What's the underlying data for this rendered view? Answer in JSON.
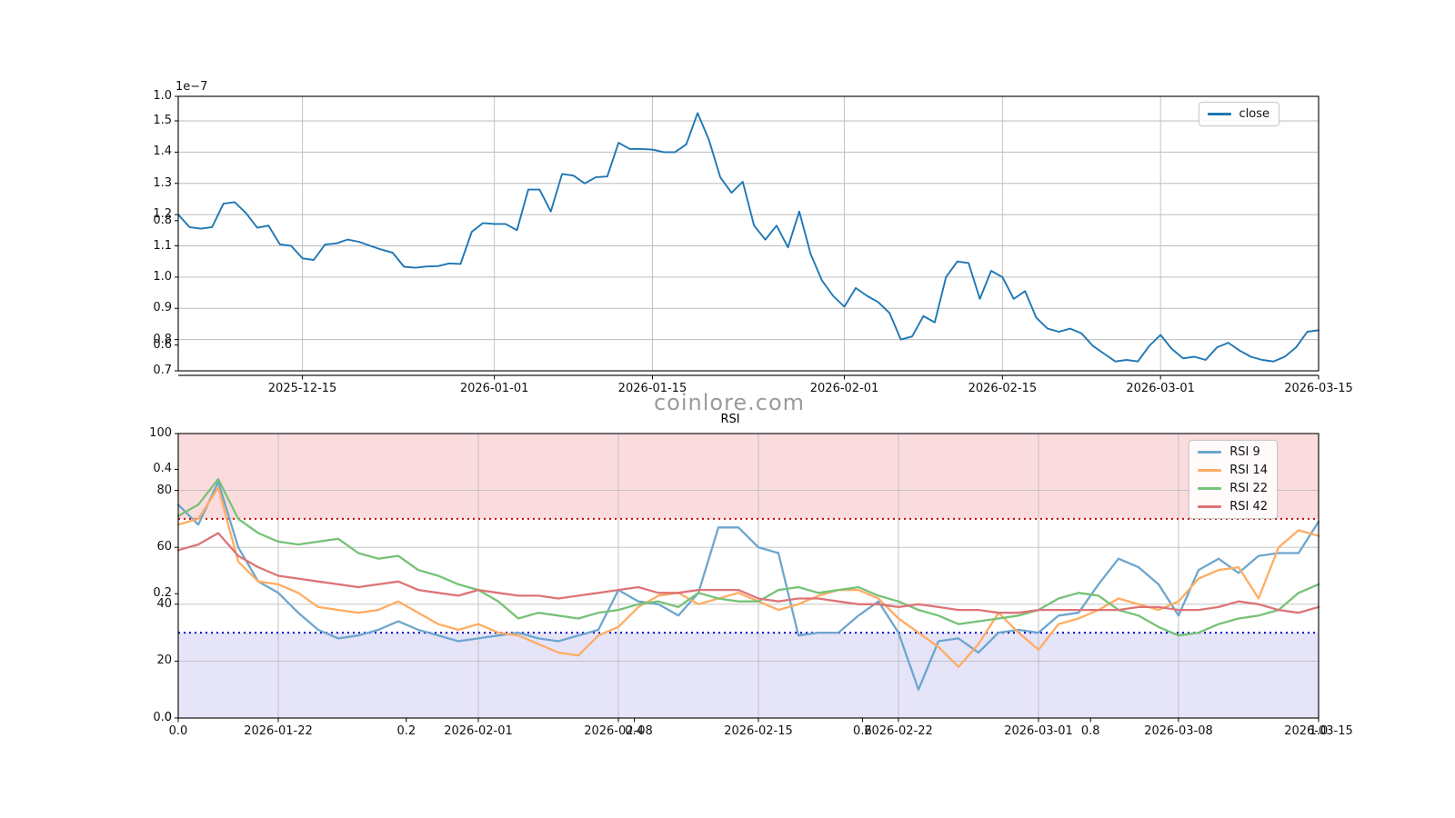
{
  "watermark": "coinlore.com",
  "overlay_axis": {
    "y_ticks": [
      "1.0",
      "0.8",
      "0.6",
      "0.4",
      "0.2",
      "0.0"
    ],
    "x_ticks": [
      "0.0",
      "0.2",
      "0.4",
      "0.6",
      "0.8",
      "1.0"
    ]
  },
  "chart_data": [
    {
      "type": "line",
      "name": "price",
      "title": "",
      "offset_label": "1e−7",
      "ylabel": "",
      "xlabel": "",
      "grid": true,
      "legend_position": "upper right",
      "ylim": [
        0.678,
        1.578
      ],
      "y_ticks": [
        "1.5",
        "1.4",
        "1.3",
        "1.2",
        "1.1",
        "1.0",
        "0.9",
        "0.8",
        "0.7"
      ],
      "x_ticks": [
        "2025-12-15",
        "2026-01-01",
        "2026-01-15",
        "2026-02-01",
        "2026-02-15",
        "2026-03-01",
        "2026-03-15"
      ],
      "x": [
        "2025-12-04",
        "2025-12-05",
        "2025-12-06",
        "2025-12-07",
        "2025-12-08",
        "2025-12-09",
        "2025-12-10",
        "2025-12-11",
        "2025-12-12",
        "2025-12-13",
        "2025-12-14",
        "2025-12-15",
        "2025-12-16",
        "2025-12-17",
        "2025-12-18",
        "2025-12-19",
        "2025-12-20",
        "2025-12-21",
        "2025-12-22",
        "2025-12-23",
        "2025-12-24",
        "2025-12-25",
        "2025-12-26",
        "2025-12-27",
        "2025-12-28",
        "2025-12-29",
        "2025-12-30",
        "2025-12-31",
        "2026-01-01",
        "2026-01-02",
        "2026-01-03",
        "2026-01-04",
        "2026-01-05",
        "2026-01-06",
        "2026-01-07",
        "2026-01-08",
        "2026-01-09",
        "2026-01-10",
        "2026-01-11",
        "2026-01-12",
        "2026-01-13",
        "2026-01-14",
        "2026-01-15",
        "2026-01-16",
        "2026-01-17",
        "2026-01-18",
        "2026-01-19",
        "2026-01-20",
        "2026-01-21",
        "2026-01-22",
        "2026-01-23",
        "2026-01-24",
        "2026-01-25",
        "2026-01-26",
        "2026-01-27",
        "2026-01-28",
        "2026-01-29",
        "2026-01-30",
        "2026-01-31",
        "2026-02-01",
        "2026-02-02",
        "2026-02-03",
        "2026-02-04",
        "2026-02-05",
        "2026-02-06",
        "2026-02-07",
        "2026-02-08",
        "2026-02-09",
        "2026-02-10",
        "2026-02-11",
        "2026-02-12",
        "2026-02-13",
        "2026-02-14",
        "2026-02-15",
        "2026-02-16",
        "2026-02-17",
        "2026-02-18",
        "2026-02-19",
        "2026-02-20",
        "2026-02-21",
        "2026-02-22",
        "2026-02-23",
        "2026-02-24",
        "2026-02-25",
        "2026-02-26",
        "2026-02-27",
        "2026-02-28",
        "2026-03-01",
        "2026-03-02",
        "2026-03-03",
        "2026-03-04",
        "2026-03-05",
        "2026-03-06",
        "2026-03-07",
        "2026-03-08",
        "2026-03-09",
        "2026-03-10",
        "2026-03-11",
        "2026-03-12",
        "2026-03-13",
        "2026-03-14",
        "2026-03-15"
      ],
      "series": [
        {
          "name": "close",
          "color": "#1f77b4",
          "unit": "1e-7",
          "values": [
            1.2,
            1.16,
            1.155,
            1.16,
            1.235,
            1.24,
            1.205,
            1.158,
            1.165,
            1.105,
            1.1,
            1.06,
            1.055,
            1.104,
            1.108,
            1.12,
            1.113,
            1.1,
            1.088,
            1.078,
            1.033,
            1.03,
            1.034,
            1.035,
            1.044,
            1.042,
            1.145,
            1.173,
            1.17,
            1.17,
            1.15,
            1.28,
            1.28,
            1.21,
            1.33,
            1.325,
            1.3,
            1.32,
            1.322,
            1.43,
            1.41,
            1.41,
            1.408,
            1.4,
            1.4,
            1.425,
            1.525,
            1.44,
            1.32,
            1.27,
            1.305,
            1.165,
            1.12,
            1.165,
            1.095,
            1.21,
            1.075,
            0.99,
            0.94,
            0.905,
            0.965,
            0.94,
            0.92,
            0.885,
            0.8,
            0.81,
            0.875,
            0.855,
            1.0,
            1.05,
            1.045,
            0.93,
            1.02,
            1.0,
            0.93,
            0.955,
            0.87,
            0.835,
            0.825,
            0.835,
            0.82,
            0.78,
            0.755,
            0.73,
            0.735,
            0.73,
            0.78,
            0.815,
            0.77,
            0.74,
            0.745,
            0.735,
            0.775,
            0.79,
            0.765,
            0.745,
            0.735,
            0.73,
            0.745,
            0.775,
            0.825,
            0.83
          ]
        }
      ]
    },
    {
      "type": "line",
      "name": "rsi",
      "title": "RSI",
      "grid": true,
      "legend_position": "upper right",
      "ylim": [
        0,
        100
      ],
      "y_ticks": [
        "100",
        "80",
        "60",
        "40",
        "20",
        "0"
      ],
      "x_ticks": [
        "2026-01-22",
        "2026-02-01",
        "2026-02-08",
        "2026-02-15",
        "2026-02-22",
        "2026-03-01",
        "2026-03-08",
        "2026-03-15"
      ],
      "hlines": [
        {
          "y": 70,
          "color": "#cc0000",
          "style": "dotted",
          "name": "overbought-level"
        },
        {
          "y": 30,
          "color": "#0000cc",
          "style": "dotted",
          "name": "oversold-level"
        }
      ],
      "bands": [
        {
          "from": 70,
          "to": 100,
          "color": "#fbdcde",
          "name": "overbought-band"
        },
        {
          "from": 0,
          "to": 30,
          "color": "#e5e4f8",
          "name": "oversold-band"
        }
      ],
      "x": [
        "2026-01-17",
        "2026-01-18",
        "2026-01-19",
        "2026-01-20",
        "2026-01-21",
        "2026-01-22",
        "2026-01-23",
        "2026-01-24",
        "2026-01-25",
        "2026-01-26",
        "2026-01-27",
        "2026-01-28",
        "2026-01-29",
        "2026-01-30",
        "2026-01-31",
        "2026-02-01",
        "2026-02-02",
        "2026-02-03",
        "2026-02-04",
        "2026-02-05",
        "2026-02-06",
        "2026-02-07",
        "2026-02-08",
        "2026-02-09",
        "2026-02-10",
        "2026-02-11",
        "2026-02-12",
        "2026-02-13",
        "2026-02-14",
        "2026-02-15",
        "2026-02-16",
        "2026-02-17",
        "2026-02-18",
        "2026-02-19",
        "2026-02-20",
        "2026-02-21",
        "2026-02-22",
        "2026-02-23",
        "2026-02-24",
        "2026-02-25",
        "2026-02-26",
        "2026-02-27",
        "2026-02-28",
        "2026-03-01",
        "2026-03-02",
        "2026-03-03",
        "2026-03-04",
        "2026-03-05",
        "2026-03-06",
        "2026-03-07",
        "2026-03-08",
        "2026-03-09",
        "2026-03-10",
        "2026-03-11",
        "2026-03-12",
        "2026-03-13",
        "2026-03-14",
        "2026-03-15"
      ],
      "series": [
        {
          "name": "RSI 9",
          "color": "#6da6ce",
          "values": [
            75,
            68,
            83,
            60,
            48,
            44,
            37,
            31,
            28,
            29,
            31,
            34,
            31,
            29,
            27,
            28,
            29,
            30,
            28,
            27,
            29,
            31,
            45,
            41,
            40,
            36,
            44,
            67,
            67,
            60,
            58,
            29,
            30,
            30,
            36,
            41,
            30,
            10,
            27,
            28,
            23,
            30,
            31,
            30,
            36,
            37,
            47,
            56,
            53,
            47,
            36,
            52,
            56,
            51,
            57,
            58,
            58,
            69
          ]
        },
        {
          "name": "RSI 14",
          "color": "#ffac62",
          "values": [
            68,
            70,
            81,
            55,
            48,
            47,
            44,
            39,
            38,
            37,
            38,
            41,
            37,
            33,
            31,
            33,
            30,
            29,
            26,
            23,
            22,
            29,
            32,
            39,
            43,
            44,
            40,
            42,
            44,
            41,
            38,
            40,
            43,
            45,
            45,
            42,
            35,
            30,
            25,
            18,
            26,
            37,
            30,
            24,
            33,
            35,
            38,
            42,
            40,
            38,
            41,
            49,
            52,
            53,
            42,
            60,
            66,
            64
          ]
        },
        {
          "name": "RSI 22",
          "color": "#76c276",
          "values": [
            71,
            75,
            84,
            70,
            65,
            62,
            61,
            62,
            63,
            58,
            56,
            57,
            52,
            50,
            47,
            45,
            41,
            35,
            37,
            36,
            35,
            37,
            38,
            40,
            41,
            39,
            44,
            42,
            41,
            41,
            45,
            46,
            44,
            45,
            46,
            43,
            41,
            38,
            36,
            33,
            34,
            35,
            36,
            38,
            42,
            44,
            43,
            38,
            36,
            32,
            29,
            30,
            33,
            35,
            36,
            38,
            44,
            47
          ]
        },
        {
          "name": "RSI 42",
          "color": "#dd7476",
          "values": [
            59,
            61,
            65,
            57,
            53,
            50,
            49,
            48,
            47,
            46,
            47,
            48,
            45,
            44,
            43,
            45,
            44,
            43,
            43,
            42,
            43,
            44,
            45,
            46,
            44,
            44,
            45,
            45,
            45,
            42,
            41,
            42,
            42,
            41,
            40,
            40,
            39,
            40,
            39,
            38,
            38,
            37,
            37,
            38,
            38,
            38,
            38,
            38,
            39,
            39,
            38,
            38,
            39,
            41,
            40,
            38,
            37,
            39
          ]
        }
      ]
    }
  ]
}
